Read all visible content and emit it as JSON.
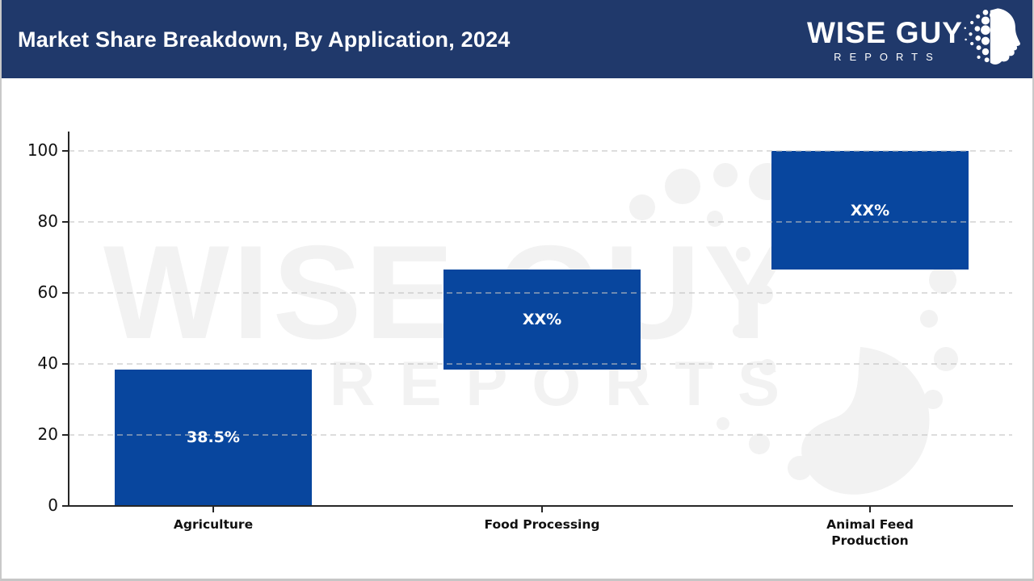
{
  "header": {
    "title": "Market Share Breakdown, By Application, 2024",
    "bg_color": "#20396b",
    "logo": {
      "name": "WISE GUY",
      "sub": "REPORTS"
    }
  },
  "watermark": {
    "line1": "WISE GUY",
    "line2": "REPORTS"
  },
  "chart_data": {
    "type": "bar",
    "variant": "waterfall",
    "title": "Market Share Breakdown, By Application, 2024",
    "categories": [
      "Agriculture",
      "Food Processing",
      "Animal Feed Production"
    ],
    "segments": [
      {
        "category": "Agriculture",
        "start": 0,
        "end": 38.5,
        "label": "38.5%"
      },
      {
        "category": "Food Processing",
        "start": 38.5,
        "end": 66.5,
        "label": "XX%"
      },
      {
        "category": "Animal Feed Production",
        "start": 66.5,
        "end": 100,
        "label": "XX%"
      }
    ],
    "xlabel": "",
    "ylabel": "",
    "yticks": [
      0,
      20,
      40,
      60,
      80,
      100
    ],
    "ylim": [
      0,
      105
    ],
    "grid": "horizontal-dashed",
    "legend": "none",
    "bar_color": "#08469e",
    "bar_label_color": "#ffffff",
    "axis_color": "#262626"
  }
}
